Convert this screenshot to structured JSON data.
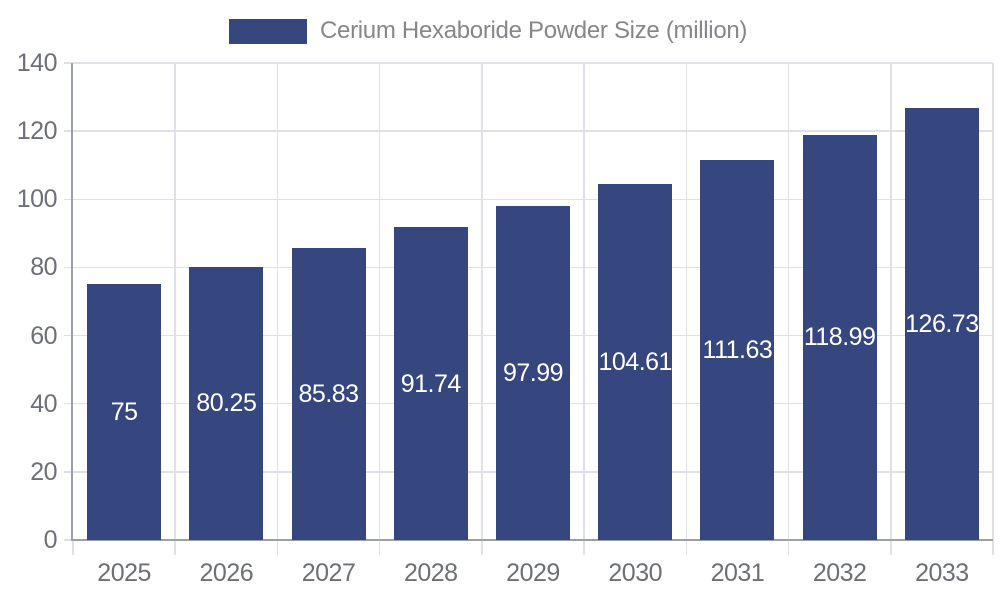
{
  "legend": {
    "label": "Cerium Hexaboride Powder Size (million)"
  },
  "colors": {
    "background": "#ffffff",
    "bar": "#36467e",
    "axis": "#9aa0a6",
    "grid": "#e0e1e8",
    "tick_label": "#6e7079",
    "legend_text": "#85878c",
    "value_label": "#ffffff"
  },
  "chart_data": {
    "type": "bar",
    "title": "",
    "series_name": "Cerium Hexaboride Powder Size (million)",
    "categories": [
      "2025",
      "2026",
      "2027",
      "2028",
      "2029",
      "2030",
      "2031",
      "2032",
      "2033"
    ],
    "values": [
      75,
      80.25,
      85.83,
      91.74,
      97.99,
      104.61,
      111.63,
      118.99,
      126.73
    ],
    "value_labels": [
      "75",
      "80.25",
      "85.83",
      "91.74",
      "97.99",
      "104.61",
      "111.63",
      "118.99",
      "126.73"
    ],
    "xlabel": "",
    "ylabel": "",
    "ylim": [
      0,
      140
    ],
    "yticks": [
      0,
      20,
      40,
      60,
      80,
      100,
      120,
      140
    ],
    "grid": true,
    "legend_position": "top",
    "value_label_position": "inside-center"
  }
}
